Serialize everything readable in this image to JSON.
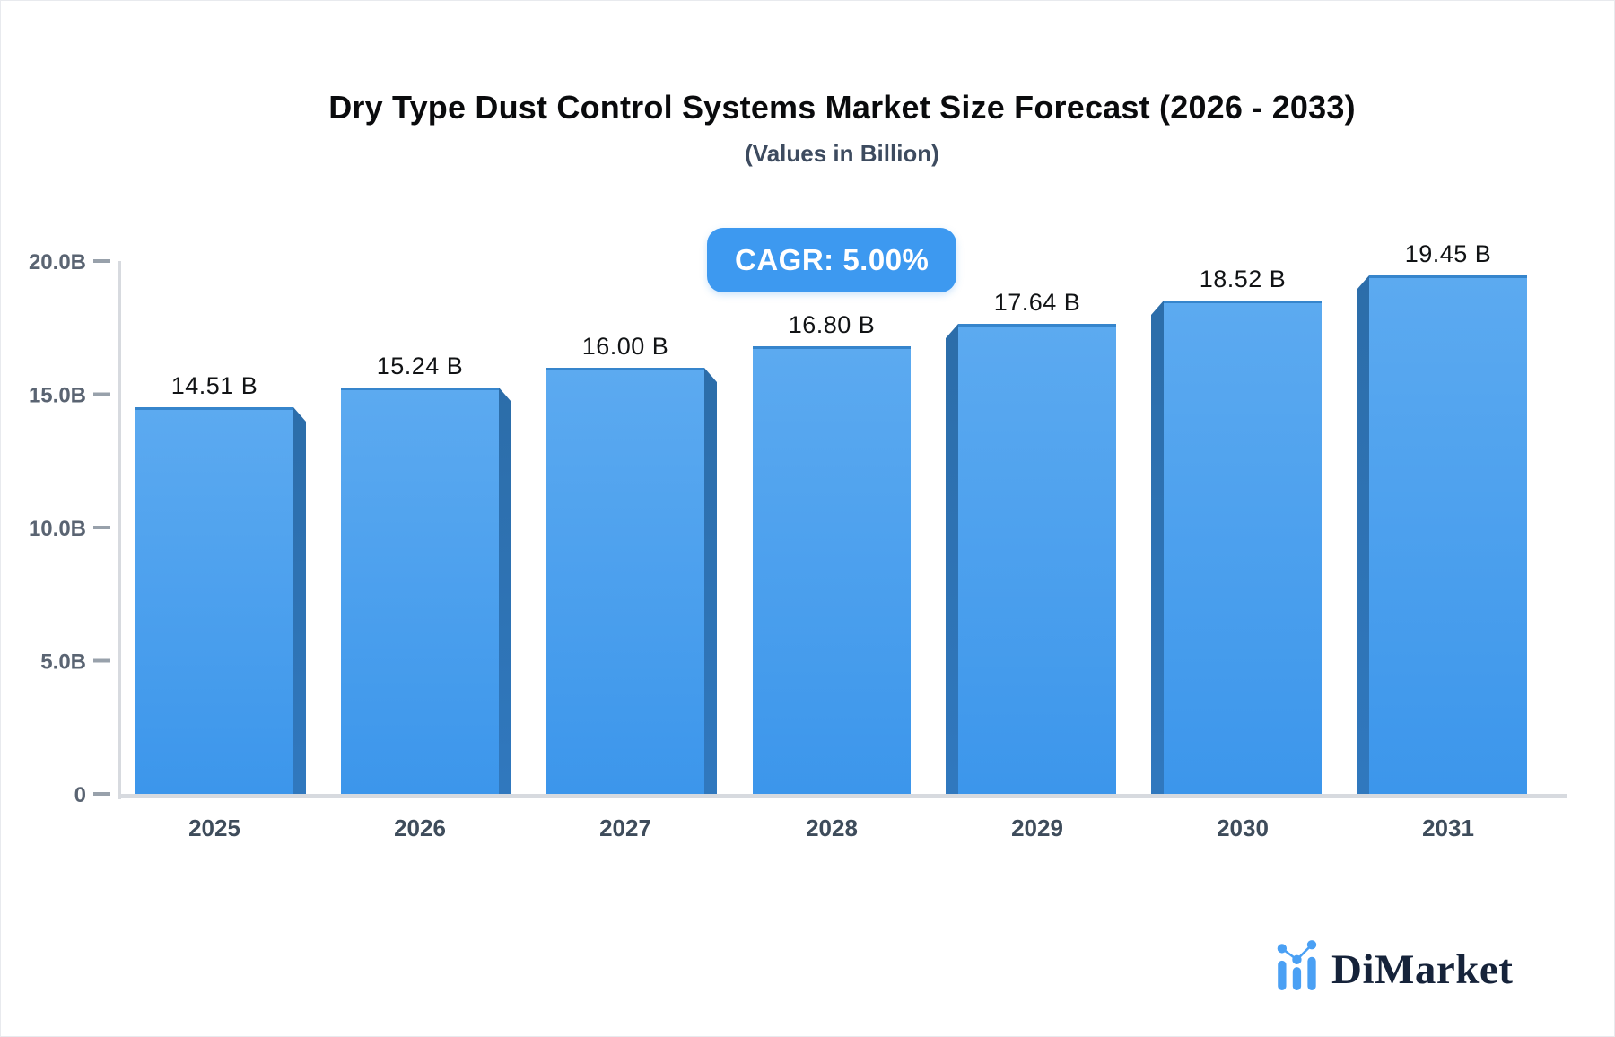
{
  "header": {
    "title": "Dry Type Dust Control Systems Market Size Forecast (2026 - 2033)",
    "subtitle": "(Values in Billion)"
  },
  "cagr_badge": {
    "label": "CAGR: 5.00%",
    "background": "#3d99f0",
    "text_color": "#ffffff"
  },
  "chart_data": {
    "type": "bar",
    "title": "Dry Type Dust Control Systems Market Size Forecast (2026 - 2033)",
    "subtitle": "(Values in Billion)",
    "categories": [
      "2025",
      "2026",
      "2027",
      "2028",
      "2029",
      "2030",
      "2031"
    ],
    "values": [
      14.51,
      15.24,
      16.0,
      16.8,
      17.64,
      18.52,
      19.45
    ],
    "value_labels": [
      "14.51 B",
      "15.24 B",
      "16.00 B",
      "16.80 B",
      "17.64 B",
      "18.52 B",
      "19.45 B"
    ],
    "unit": "Billion",
    "cagr": "5.00%",
    "xlabel": "",
    "ylabel": "",
    "ylim": [
      0,
      20
    ],
    "ytick_values": [
      0,
      5,
      10,
      15,
      20
    ],
    "ytick_labels": [
      "0",
      "5.0B",
      "10.0B",
      "15.0B",
      "20.0B"
    ],
    "grid": false,
    "legend": false,
    "colors": {
      "bar_face_top": "#5caaf0",
      "bar_face_bottom": "#3c96eb",
      "bar_face_top_edge": "#2f7fc6",
      "bar_side_top": "#2c6da9",
      "bar_side_bottom": "#3078be",
      "axis_line": "#d7dadf",
      "tick_dash": "#98a1ab",
      "ytick_text": "#5a6472",
      "xtick_text": "#3e4c5b",
      "value_text": "#111315"
    }
  },
  "logo": {
    "text": "DiMarket",
    "icon": "mini-bar-line-chart",
    "icon_color": "#4aa0f4",
    "text_color": "#16233a"
  }
}
